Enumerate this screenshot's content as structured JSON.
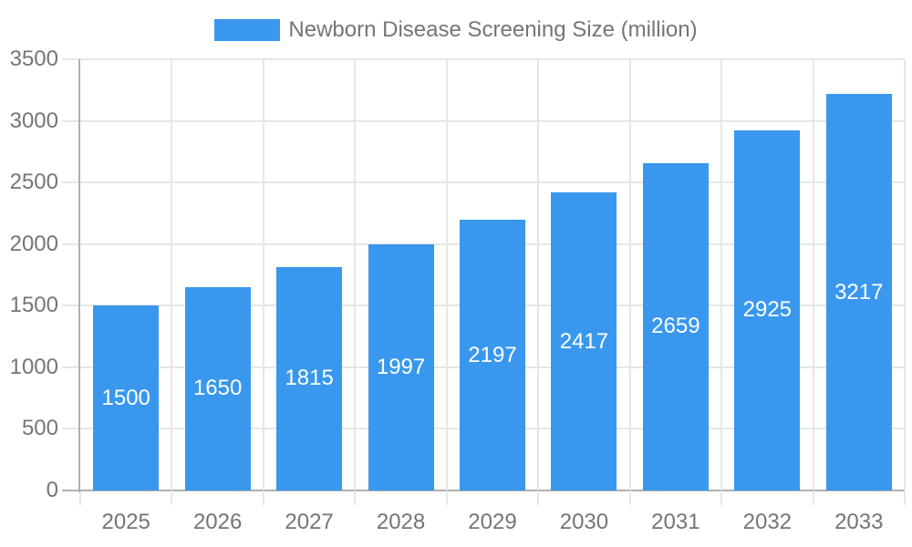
{
  "legend": {
    "series_label": "Newborn Disease Screening Size (million)"
  },
  "colors": {
    "bar": "#3998ED",
    "grid": "#E6E6E6",
    "axis": "#B0B0B0",
    "axis_text": "#757575",
    "bar_label_text": "#FFFFFF",
    "background": "#FFFFFF"
  },
  "chart_data": {
    "type": "bar",
    "title": "Newborn Disease Screening Size (million)",
    "series": [
      {
        "name": "Newborn Disease Screening Size (million)",
        "values": [
          1500,
          1650,
          1815,
          1997,
          2197,
          2417,
          2659,
          2925,
          3217
        ]
      }
    ],
    "categories": [
      "2025",
      "2026",
      "2027",
      "2028",
      "2029",
      "2030",
      "2031",
      "2032",
      "2033"
    ],
    "xlabel": "",
    "ylabel": "",
    "ylim": [
      0,
      3500
    ],
    "yticks": [
      0,
      500,
      1000,
      1500,
      2000,
      2500,
      3000,
      3500
    ],
    "grid": true,
    "legend_position": "top",
    "value_labels": "inside-center-white"
  }
}
